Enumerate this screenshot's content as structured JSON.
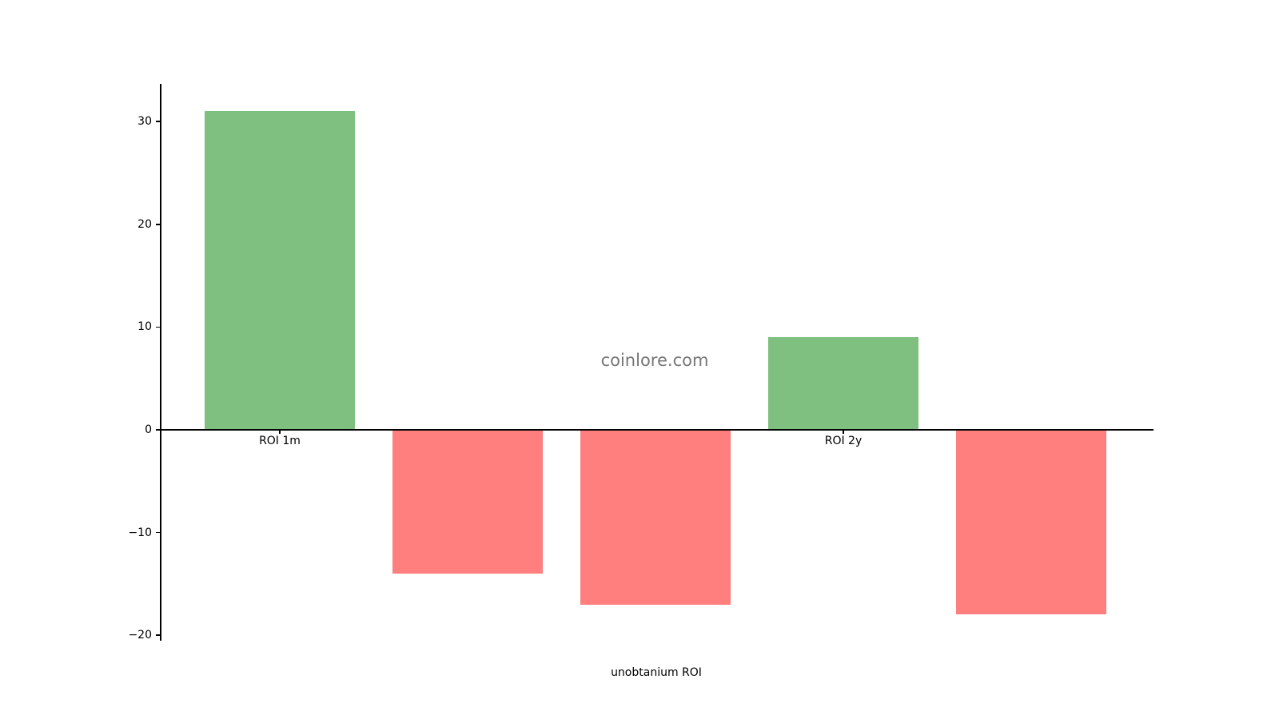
{
  "watermark": "coinlore.com",
  "chart_data": {
    "type": "bar",
    "title": "",
    "xlabel": "unobtanium ROI",
    "ylabel": "",
    "categories": [
      "ROI 1m",
      "",
      "",
      "ROI 2y",
      ""
    ],
    "values": [
      31,
      -14,
      -17,
      9,
      -18
    ],
    "yticks": [
      30,
      20,
      10,
      0,
      -10,
      -20
    ],
    "ylim": [
      -20.6,
      33.7
    ],
    "grid": false,
    "legend_position": "none",
    "colors": {
      "positive_bar": "#7fbf7f",
      "negative_bar": "#ff7f7f",
      "axis": "#000000",
      "watermark": "#777777",
      "background": "#ffffff"
    }
  }
}
